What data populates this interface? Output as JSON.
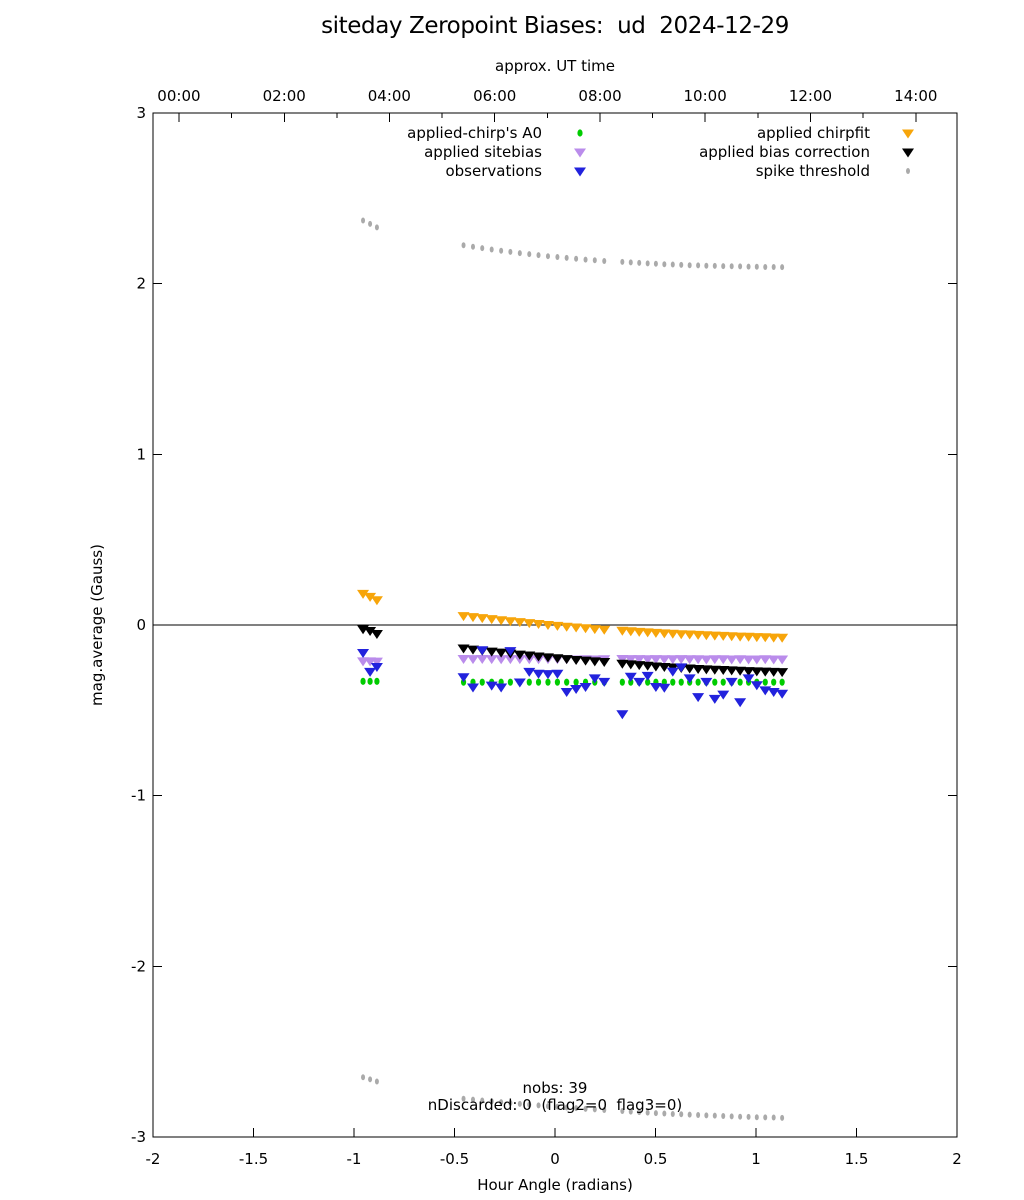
{
  "chart_data": {
    "type": "scatter",
    "title": "siteday Zeropoint Biases:  ud  2024-12-29",
    "xlabel": "Hour Angle (radians)",
    "x2label": "approx. UT time",
    "ylabel": "mag.average (Gauss)",
    "xlim": [
      -2,
      2
    ],
    "ylim": [
      -3,
      3
    ],
    "grid": false,
    "zero_line": true,
    "legend_position": "top-inside-two-columns",
    "x_ticks": [
      {
        "v": -2,
        "label": "-2"
      },
      {
        "v": -1.5,
        "label": "-1.5"
      },
      {
        "v": -1,
        "label": "-1"
      },
      {
        "v": -0.5,
        "label": "-0.5"
      },
      {
        "v": 0,
        "label": "0"
      },
      {
        "v": 0.5,
        "label": "0.5"
      },
      {
        "v": 1,
        "label": "1"
      },
      {
        "v": 1.5,
        "label": "1.5"
      },
      {
        "v": 2,
        "label": "2"
      }
    ],
    "y_ticks": [
      {
        "v": 3,
        "label": "3"
      },
      {
        "v": 2,
        "label": "2"
      },
      {
        "v": 1,
        "label": "1"
      },
      {
        "v": 0,
        "label": "0"
      },
      {
        "v": -1,
        "label": "-1"
      },
      {
        "v": -2,
        "label": "-2"
      },
      {
        "v": -3,
        "label": "-3"
      }
    ],
    "x2_ticks": [
      {
        "v": -1.871,
        "label": "00:00"
      },
      {
        "v": -1.347,
        "label": "02:00"
      },
      {
        "v": -0.824,
        "label": "04:00"
      },
      {
        "v": -0.3,
        "label": "06:00"
      },
      {
        "v": 0.224,
        "label": "08:00"
      },
      {
        "v": 0.747,
        "label": "10:00"
      },
      {
        "v": 1.271,
        "label": "12:00"
      },
      {
        "v": 1.795,
        "label": "14:00"
      }
    ],
    "x2_minor_ticks": [
      -1.609,
      -1.085,
      -0.562,
      -0.038,
      0.485,
      1.009,
      1.533
    ],
    "x": [
      -0.955,
      -0.92,
      -0.886,
      -0.455,
      -0.408,
      -0.362,
      -0.315,
      -0.268,
      -0.222,
      -0.175,
      -0.128,
      -0.082,
      -0.035,
      0.012,
      0.058,
      0.105,
      0.152,
      0.198,
      0.245,
      0.335,
      0.377,
      0.419,
      0.461,
      0.502,
      0.544,
      0.586,
      0.628,
      0.67,
      0.712,
      0.753,
      0.795,
      0.837,
      0.879,
      0.921,
      0.963,
      1.004,
      1.046,
      1.088,
      1.13
    ],
    "series": [
      {
        "name": "applied-chirp's A0",
        "color": "#00CC00",
        "marker": "dot",
        "legend_col": "left",
        "legend_row": 0,
        "values": [
          -0.33,
          -0.33,
          -0.33,
          -0.335,
          -0.335,
          -0.335,
          -0.335,
          -0.335,
          -0.335,
          -0.335,
          -0.335,
          -0.335,
          -0.335,
          -0.335,
          -0.335,
          -0.335,
          -0.335,
          -0.335,
          -0.335,
          -0.335,
          -0.335,
          -0.335,
          -0.335,
          -0.335,
          -0.335,
          -0.335,
          -0.335,
          -0.335,
          -0.335,
          -0.335,
          -0.335,
          -0.335,
          -0.335,
          -0.335,
          -0.335,
          -0.335,
          -0.335,
          -0.335,
          -0.335
        ]
      },
      {
        "name": "applied chirpfit",
        "color": "#F7A50A",
        "marker": "triangle-down",
        "legend_col": "right",
        "legend_row": 0,
        "values": [
          0.185,
          0.168,
          0.148,
          0.055,
          0.049,
          0.043,
          0.037,
          0.031,
          0.025,
          0.02,
          0.014,
          0.009,
          0.003,
          -0.002,
          -0.007,
          -0.012,
          -0.016,
          -0.021,
          -0.025,
          -0.031,
          -0.034,
          -0.037,
          -0.04,
          -0.043,
          -0.046,
          -0.048,
          -0.051,
          -0.053,
          -0.055,
          -0.057,
          -0.059,
          -0.061,
          -0.063,
          -0.065,
          -0.066,
          -0.068,
          -0.069,
          -0.071,
          -0.072
        ]
      },
      {
        "name": "applied sitebias",
        "color": "#BA8CEB",
        "marker": "triangle-down",
        "legend_col": "left",
        "legend_row": 1,
        "values": [
          -0.21,
          -0.21,
          -0.212,
          -0.196,
          -0.197,
          -0.196,
          -0.197,
          -0.198,
          -0.197,
          -0.197,
          -0.198,
          -0.198,
          -0.197,
          -0.198,
          -0.198,
          -0.199,
          -0.198,
          -0.199,
          -0.198,
          -0.196,
          -0.197,
          -0.197,
          -0.198,
          -0.197,
          -0.198,
          -0.198,
          -0.197,
          -0.198,
          -0.198,
          -0.199,
          -0.198,
          -0.198,
          -0.199,
          -0.198,
          -0.199,
          -0.199,
          -0.198,
          -0.199,
          -0.199
        ]
      },
      {
        "name": "applied bias correction",
        "color": "#000000",
        "marker": "triangle-down",
        "legend_col": "right",
        "legend_row": 1,
        "values": [
          -0.022,
          -0.032,
          -0.05,
          -0.135,
          -0.141,
          -0.147,
          -0.153,
          -0.159,
          -0.165,
          -0.171,
          -0.176,
          -0.182,
          -0.187,
          -0.192,
          -0.197,
          -0.202,
          -0.206,
          -0.21,
          -0.214,
          -0.224,
          -0.228,
          -0.232,
          -0.236,
          -0.24,
          -0.243,
          -0.246,
          -0.249,
          -0.252,
          -0.255,
          -0.257,
          -0.259,
          -0.261,
          -0.263,
          -0.265,
          -0.267,
          -0.269,
          -0.27,
          -0.272,
          -0.273
        ]
      },
      {
        "name": "observations",
        "color": "#2222DD",
        "marker": "triangle-down",
        "legend_col": "left",
        "legend_row": 2,
        "values": [
          -0.161,
          -0.272,
          -0.243,
          -0.303,
          -0.363,
          -0.145,
          -0.352,
          -0.363,
          -0.15,
          -0.334,
          -0.272,
          -0.283,
          -0.285,
          -0.283,
          -0.39,
          -0.372,
          -0.36,
          -0.31,
          -0.33,
          -0.52,
          -0.3,
          -0.33,
          -0.295,
          -0.36,
          -0.365,
          -0.27,
          -0.245,
          -0.31,
          -0.42,
          -0.33,
          -0.43,
          -0.405,
          -0.33,
          -0.45,
          -0.31,
          -0.35,
          -0.38,
          -0.39,
          -0.4
        ]
      },
      {
        "name": "spike threshold",
        "color": "#AAAAAA",
        "marker": "small-dot",
        "legend_col": "right",
        "legend_row": 2,
        "values_upper": [
          2.37,
          2.35,
          2.33,
          2.225,
          2.216,
          2.208,
          2.2,
          2.193,
          2.186,
          2.179,
          2.173,
          2.167,
          2.161,
          2.156,
          2.151,
          2.146,
          2.141,
          2.137,
          2.133,
          2.128,
          2.125,
          2.122,
          2.119,
          2.117,
          2.114,
          2.112,
          2.11,
          2.108,
          2.107,
          2.105,
          2.104,
          2.103,
          2.102,
          2.101,
          2.1,
          2.099,
          2.098,
          2.098,
          2.097
        ],
        "values_lower": [
          -2.65,
          -2.662,
          -2.675,
          -2.776,
          -2.781,
          -2.786,
          -2.791,
          -2.796,
          -2.801,
          -2.806,
          -2.81,
          -2.815,
          -2.819,
          -2.823,
          -2.827,
          -2.831,
          -2.835,
          -2.838,
          -2.842,
          -2.848,
          -2.851,
          -2.854,
          -2.857,
          -2.86,
          -2.862,
          -2.865,
          -2.867,
          -2.869,
          -2.871,
          -2.873,
          -2.875,
          -2.877,
          -2.879,
          -2.881,
          -2.882,
          -2.884,
          -2.885,
          -2.886,
          -2.888
        ]
      }
    ],
    "annotations": [
      {
        "text": "nobs: 39",
        "x": 0,
        "y": -2.71
      },
      {
        "text": "nDiscarded: 0  (flag2=0  flag3=0)",
        "x": 0,
        "y": -2.815
      }
    ]
  }
}
